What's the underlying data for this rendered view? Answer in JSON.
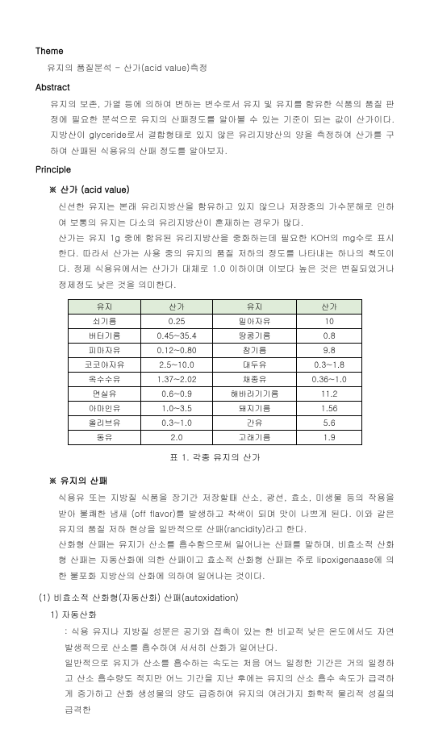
{
  "theme": {
    "head": "Theme",
    "line": "유지의 품질분석 - 산가(acid value)측정"
  },
  "abstract": {
    "head": "Abstract",
    "p1": "유지의 보존, 가열 등에 의하여 변하는 변수로서 유지 및 유지를 함유한 식품의 품질 판정에 필요한 분석으로 유지의 산패정도를 알아볼 수 있는 기준이 되는 값이 산가이다. 지방산이 glyceride로서 결합형태로 있지 않은 유리지방산의 양을 측정하여 산가를 구하여 산패된 식용유의 산패 정도를 알아보자."
  },
  "principle": {
    "head": "Principle",
    "av_head": "※ 산가 (acid value)",
    "av_p1": "신선한 유지는 본래 유리지방산을 함유하고 있지 않으나 저장중의 가수분해로 인하여 보통의 유지는 다소의 유리지방산이 혼재하는 경우가 많다.",
    "av_p2": "산가는 유지 1g 중에 함유된 유리지방산을 중화하는데 필요한 KOH의 mg수로 표시한다. 따라서 산가는 사용 중의 유지의 품질 저하의 정도를 나타내는 하나의 척도이다. 정제 식용유에서는 산가가 대체로 1.0 이하이며 이보다 높은 것은 변질되었거나 정제정도 낮은 것을 의미한다."
  },
  "table": {
    "h1": "유지",
    "h2": "산가",
    "h3": "유지",
    "h4": "산가",
    "rows": [
      [
        "쇠기름",
        "0.25",
        "밀아자유",
        "10"
      ],
      [
        "버터기름",
        "0.45~35.4",
        "땅콩기름",
        "0.8"
      ],
      [
        "피마자유",
        "0.12~0.80",
        "참기름",
        "9.8"
      ],
      [
        "코코야자유",
        "2.5~10.0",
        "대두유",
        "0.3~1.8"
      ],
      [
        "옥수수유",
        "1.37~2.02",
        "채종유",
        "0.36~1.0"
      ],
      [
        "면실유",
        "0.6~0.9",
        "해바라기기름",
        "11.2"
      ],
      [
        "아마인유",
        "1.0~3.5",
        "돼지기름",
        "1.56"
      ],
      [
        "올리브유",
        "0.3~1.0",
        "간유",
        "5.6"
      ],
      [
        "동유",
        "2.0",
        "고래기름",
        "1.9"
      ]
    ],
    "caption": "표 1. 각종 유지의 산가",
    "header_bg": "#dfecd9"
  },
  "rancidity": {
    "head": "※ 유지의 산패",
    "p1": "식용유 또는 지방질 식품을 장기간 저장할때 산소, 광선, 효소, 미생물 등의 작용을 받아 불쾌한 냄새 (off flavor)를 발생하고 착색이 되며 맛이 나쁘게 된다. 이와 같은 유지의 품질 저하 현상을 일반적으로 산패(rancidity)라고 한다.",
    "p2": "산화형 산패는 유지가 산소를 흡수함으로써 일어나는 산패를 말하며, 비효소적 산화형 산패는 자동산화에 의한 산패이고 효소적 산화형 산패는 주로 lipoxigenaase에 의한 불포화 지방산의 산화에 의하여 일어나는 것이다."
  },
  "autox": {
    "head1": "(1) 비효소적 산화형(자동산화) 산패(autoxidation)",
    "sub1": "1) 자동산화",
    "p1": ": 식용 유지나 지방질 성분은 공기와 접촉이 있는 한 비교적 낮은 온도에서도 자연발생적으로 산소를 흡수하여 서서히 산화가 일어난다.",
    "p2": "일반적으로 유지가 산소를 흡수하는 속도는 처음 어느 일정한 기간은 거의 일정하고 산소 흡수량도 적지만 어느 기간을 지난 후에는 유지의 산소 흡수 속도가 급격하게 증가하고 산화 생성물의 양도 급증하여 유지의 여러가지 화학적 물리적 성질의 급격한"
  }
}
